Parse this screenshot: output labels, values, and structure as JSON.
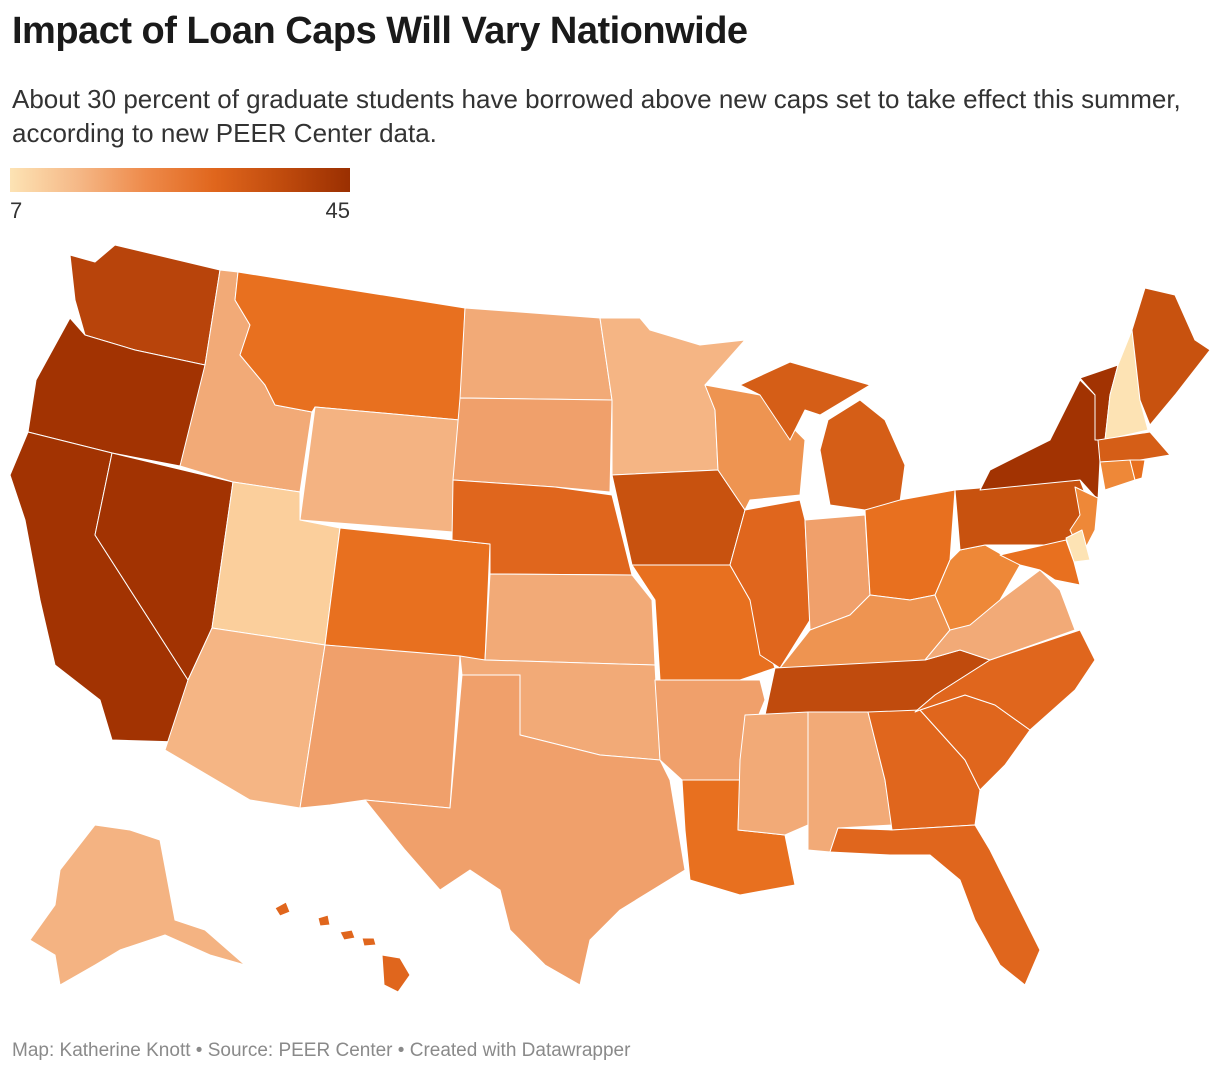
{
  "title": "Impact of Loan Caps Will Vary Nationwide",
  "subtitle": "About 30 percent of graduate students have borrowed above new caps set to take effect this summer, according to new PEER Center data.",
  "legend": {
    "min": "7",
    "max": "45",
    "colors": [
      "#fde3b4",
      "#f5b887",
      "#ee8a4a",
      "#e0661d",
      "#c04b0d",
      "#9a2f01"
    ]
  },
  "map_data": {
    "scale_min": 7,
    "scale_max": 45,
    "regions": [
      {
        "state": "WA",
        "fill": "#b8440b"
      },
      {
        "state": "OR",
        "fill": "#a23302"
      },
      {
        "state": "CA",
        "fill": "#a23302"
      },
      {
        "state": "NV",
        "fill": "#a23302"
      },
      {
        "state": "ID",
        "fill": "#f2aa77"
      },
      {
        "state": "MT",
        "fill": "#e8701f"
      },
      {
        "state": "WY",
        "fill": "#f4b382"
      },
      {
        "state": "UT",
        "fill": "#fbcf9c"
      },
      {
        "state": "AZ",
        "fill": "#f5b584"
      },
      {
        "state": "CO",
        "fill": "#e8701f"
      },
      {
        "state": "NM",
        "fill": "#f0a06b"
      },
      {
        "state": "ND",
        "fill": "#f2aa77"
      },
      {
        "state": "SD",
        "fill": "#f0a06b"
      },
      {
        "state": "NE",
        "fill": "#e0661d"
      },
      {
        "state": "KS",
        "fill": "#f2aa77"
      },
      {
        "state": "OK",
        "fill": "#f2aa77"
      },
      {
        "state": "TX",
        "fill": "#f0a06b"
      },
      {
        "state": "MN",
        "fill": "#f5b584"
      },
      {
        "state": "IA",
        "fill": "#c8520f"
      },
      {
        "state": "MO",
        "fill": "#e8701f"
      },
      {
        "state": "AR",
        "fill": "#f0a06b"
      },
      {
        "state": "LA",
        "fill": "#e8701f"
      },
      {
        "state": "WI",
        "fill": "#ee9451"
      },
      {
        "state": "IL",
        "fill": "#e0661d"
      },
      {
        "state": "MI",
        "fill": "#d55e17"
      },
      {
        "state": "IN",
        "fill": "#f0a06b"
      },
      {
        "state": "OH",
        "fill": "#e8701f"
      },
      {
        "state": "KY",
        "fill": "#ee9451"
      },
      {
        "state": "TN",
        "fill": "#c04b0d"
      },
      {
        "state": "MS",
        "fill": "#f2aa77"
      },
      {
        "state": "AL",
        "fill": "#f2aa77"
      },
      {
        "state": "GA",
        "fill": "#e0661d"
      },
      {
        "state": "FL",
        "fill": "#e0661d"
      },
      {
        "state": "SC",
        "fill": "#e0661d"
      },
      {
        "state": "NC",
        "fill": "#e0661d"
      },
      {
        "state": "VA",
        "fill": "#f2aa77"
      },
      {
        "state": "WV",
        "fill": "#ee8838"
      },
      {
        "state": "PA",
        "fill": "#c8520f"
      },
      {
        "state": "NY",
        "fill": "#a23302"
      },
      {
        "state": "VT",
        "fill": "#a23302"
      },
      {
        "state": "NH",
        "fill": "#fde3b4"
      },
      {
        "state": "ME",
        "fill": "#c8520f"
      },
      {
        "state": "MA",
        "fill": "#d55e17"
      },
      {
        "state": "CT",
        "fill": "#ee8838"
      },
      {
        "state": "RI",
        "fill": "#e8701f"
      },
      {
        "state": "NJ",
        "fill": "#ee8838"
      },
      {
        "state": "DE",
        "fill": "#fde3b4"
      },
      {
        "state": "MD",
        "fill": "#e8701f"
      },
      {
        "state": "AK",
        "fill": "#f4b382"
      },
      {
        "state": "HI",
        "fill": "#e0661d"
      }
    ]
  },
  "footer": "Map: Katherine Knott • Source: PEER Center • Created with Datawrapper"
}
